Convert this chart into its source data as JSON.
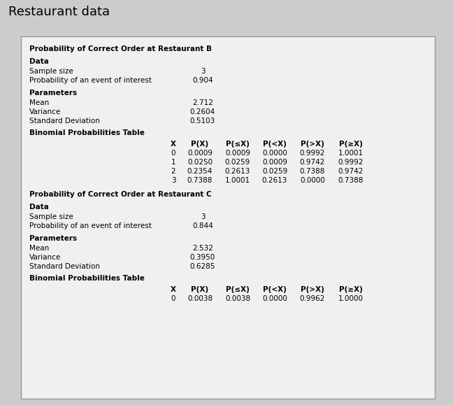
{
  "title": "Restaurant data",
  "title_fontsize": 13,
  "background_color": "#cccccc",
  "box_background": "#f0f0f0",
  "box_edge_color": "#999999",
  "section_B_title": "Probability of Correct Order at Restaurant B",
  "section_C_title": "Probability of Correct Order at Restaurant C",
  "B_data_label": "Data",
  "B_sample_size_label": "Sample size",
  "B_sample_size_value": "3",
  "B_prob_label": "Probability of an event of interest",
  "B_prob_value": "0.904",
  "B_params_label": "Parameters",
  "B_mean_label": "Mean",
  "B_mean_value": "2.712",
  "B_variance_label": "Variance",
  "B_variance_value": "0.2604",
  "B_std_label": "Standard Deviation",
  "B_std_value": "0.5103",
  "B_binom_label": "Binomial Probabilities Table",
  "B_table_header": [
    "X",
    "P(X)",
    "P(≤X)",
    "P(<X)",
    "P(>X)",
    "P(≥X)"
  ],
  "B_table_rows": [
    [
      "0",
      "0.0009",
      "0.0009",
      "0.0000",
      "0.9992",
      "1.0001"
    ],
    [
      "1",
      "0.0250",
      "0.0259",
      "0.0009",
      "0.9742",
      "0.9992"
    ],
    [
      "2",
      "0.2354",
      "0.2613",
      "0.0259",
      "0.7388",
      "0.9742"
    ],
    [
      "3",
      "0.7388",
      "1.0001",
      "0.2613",
      "0.0000",
      "0.7388"
    ]
  ],
  "C_data_label": "Data",
  "C_sample_size_label": "Sample size",
  "C_sample_size_value": "3",
  "C_prob_label": "Probability of an event of interest",
  "C_prob_value": "0.844",
  "C_params_label": "Parameters",
  "C_mean_label": "Mean",
  "C_mean_value": "2.532",
  "C_variance_label": "Variance",
  "C_variance_value": "0.3950",
  "C_std_label": "Standard Deviation",
  "C_std_value": "0.6285",
  "C_binom_label": "Binomial Probabilities Table",
  "C_table_header": [
    "X",
    "P(X)",
    "P(≤X)",
    "P(<X)",
    "P(>X)",
    "P(≥X)"
  ],
  "C_table_rows": [
    [
      "0",
      "0.0038",
      "0.0038",
      "0.0000",
      "0.9962",
      "1.0000"
    ]
  ],
  "font_family": "DejaVu Sans",
  "fs": 7.5,
  "fs_bold": 7.5
}
